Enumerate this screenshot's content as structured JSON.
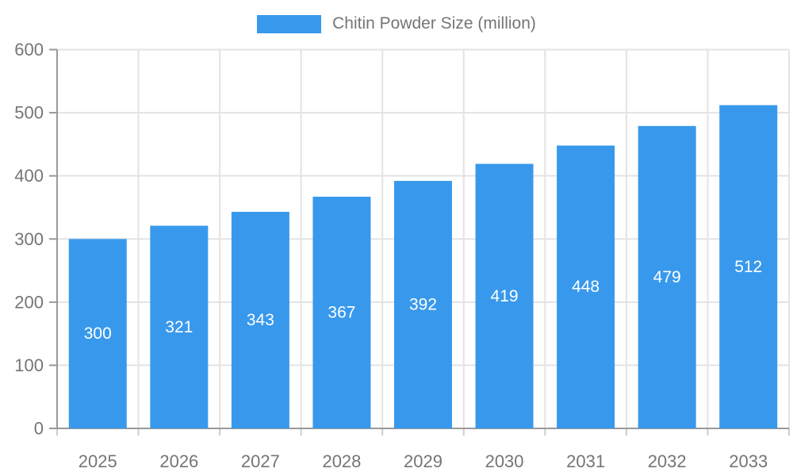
{
  "chart_data": {
    "type": "bar",
    "title": "Chitin Powder Size (million)",
    "categories": [
      "2025",
      "2026",
      "2027",
      "2028",
      "2029",
      "2030",
      "2031",
      "2032",
      "2033"
    ],
    "values": [
      300,
      321,
      343,
      367,
      392,
      419,
      448,
      479,
      512
    ],
    "xlabel": "",
    "ylabel": "",
    "ylim": [
      0,
      600
    ],
    "ytick_step": 100,
    "ytick_labels": [
      "0",
      "100",
      "200",
      "300",
      "400",
      "500",
      "600"
    ],
    "grid": true,
    "legend_position": "top",
    "bar_color": "#3899ec",
    "bar_label_color": "#ffffff",
    "grid_color": "#e3e3e3",
    "axis_color": "#999999",
    "tick_color": "#cccccc",
    "tick_label_color": "#757575"
  }
}
